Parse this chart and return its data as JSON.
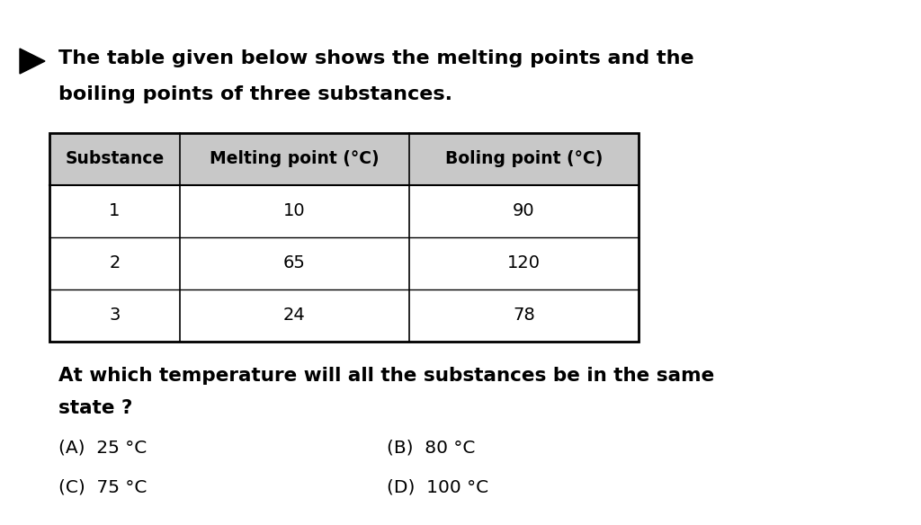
{
  "title_line1": "The table given below shows the melting points and the",
  "title_line2": "boiling points of three substances.",
  "col_headers": [
    "Substance",
    "Melting point (°C)",
    "Boling point (°C)"
  ],
  "rows": [
    [
      "1",
      "10",
      "90"
    ],
    [
      "2",
      "65",
      "120"
    ],
    [
      "3",
      "24",
      "78"
    ]
  ],
  "question_line1": "At which temperature will all the substances be in the same",
  "question_line2": "state ?",
  "options_col1": [
    "(A)  25 °C",
    "(C)  75 °C"
  ],
  "options_col2": [
    "(B)  80 °C",
    "(D)  100 °C"
  ],
  "bg_color": "#ffffff",
  "header_bg": "#c8c8c8",
  "table_border_color": "#000000",
  "text_color": "#000000",
  "arrow_color": "#000000",
  "fig_width": 10.24,
  "fig_height": 5.84,
  "dpi": 100
}
